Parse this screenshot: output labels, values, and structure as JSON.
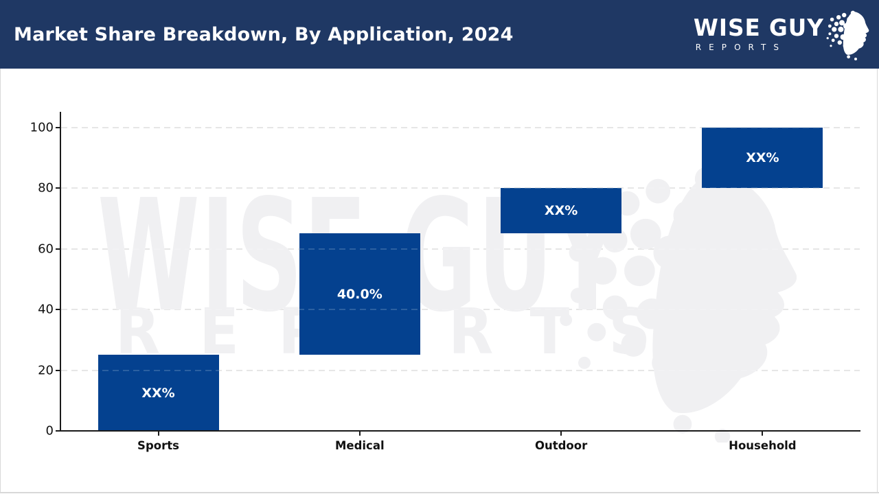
{
  "header": {
    "title": "Market Share Breakdown, By Application, 2024",
    "logo": {
      "line1": "WISE GUY",
      "line2": "REPORTS",
      "head_icon": "dotted-face-profile-icon"
    }
  },
  "watermark": {
    "line1": "WISE GUY",
    "line2": "REPORTS"
  },
  "colors": {
    "header_bg": "#1f3864",
    "bar_blue": "#04418f",
    "axis": "#1a1a1a",
    "gridline": "#e1e1e1",
    "watermark": "#f0f0f2"
  },
  "chart_data": {
    "type": "bar",
    "subtype": "waterfall",
    "title": "Market Share Breakdown, By Application, 2024",
    "categories": [
      "Sports",
      "Medical",
      "Outdoor",
      "Household"
    ],
    "bars": [
      {
        "category": "Sports",
        "start": 0,
        "end": 25,
        "label": "XX%"
      },
      {
        "category": "Medical",
        "start": 25,
        "end": 65,
        "label": "40.0%"
      },
      {
        "category": "Outdoor",
        "start": 65,
        "end": 80,
        "label": "XX%"
      },
      {
        "category": "Household",
        "start": 80,
        "end": 100,
        "label": "XX%"
      }
    ],
    "xlabel": "",
    "ylabel": "",
    "yticks": [
      0,
      20,
      40,
      60,
      80,
      100
    ],
    "ylim": [
      0,
      105
    ],
    "grid": true,
    "grid_style": "dashed",
    "legend": false,
    "bar_color": "#04418f",
    "bar_label_color": "#ffffff"
  }
}
